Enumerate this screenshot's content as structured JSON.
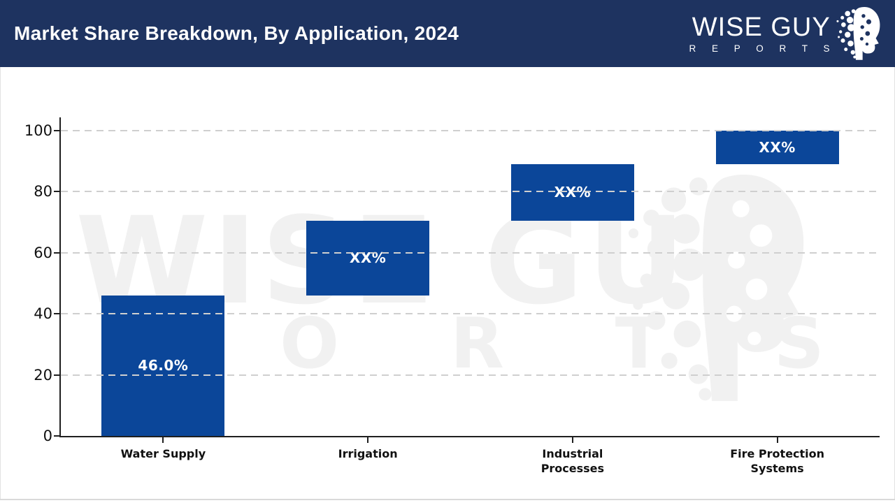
{
  "header": {
    "title": "Market Share Breakdown, By Application, 2024"
  },
  "logo": {
    "line1": "WISE GUY",
    "line2": "R E P O R T S"
  },
  "watermark": {
    "line1": "WISE GU",
    "line2": "P O R T S"
  },
  "colors": {
    "header_bg": "#1e3360",
    "bar": "#0b4699",
    "grid": "#cfcfcf",
    "axis": "#1f1f1f",
    "bar_label": "#ffffff",
    "watermark": "#f1f1f1"
  },
  "chart_data": {
    "type": "bar",
    "subtype": "waterfall",
    "title": "Market Share Breakdown, By Application, 2024",
    "categories": [
      "Water Supply",
      "Irrigation",
      "Industrial Processes",
      "Fire Protection Systems"
    ],
    "segments": [
      {
        "category": "Water Supply",
        "start": 0,
        "end": 46.0,
        "label": "46.0%"
      },
      {
        "category": "Irrigation",
        "start": 46.0,
        "end": 70.5,
        "label": "XX%"
      },
      {
        "category": "Industrial Processes",
        "start": 70.5,
        "end": 89.0,
        "label": "XX%"
      },
      {
        "category": "Fire Protection Systems",
        "start": 89.0,
        "end": 100.0,
        "label": "XX%"
      }
    ],
    "values_masked_except_first": true,
    "yticks": [
      0,
      20,
      40,
      60,
      80,
      100
    ],
    "ylim": [
      0,
      104
    ],
    "xlabel": "",
    "ylabel": "",
    "grid": "dashed-horizontal-over-bars",
    "legend": "none"
  }
}
